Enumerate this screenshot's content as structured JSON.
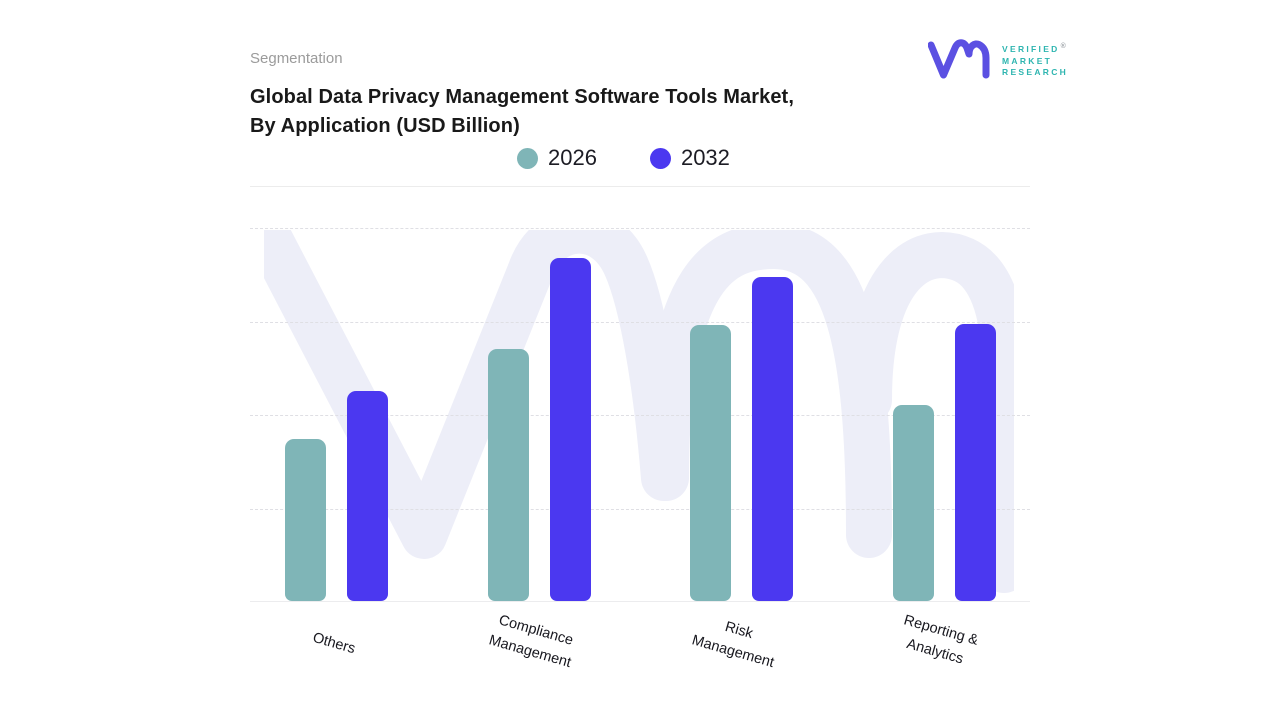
{
  "header": {
    "eyebrow": "Segmentation",
    "title_line1": "Global Data Privacy Management Software Tools Market,",
    "title_line2": "By Application (USD Billion)"
  },
  "logo": {
    "brand_lines": [
      "VERIFIED",
      "MARKET",
      "RESEARCH"
    ],
    "registered_mark": "®",
    "mark_color": "#5B50E2",
    "text_color": "#2EB5B0"
  },
  "legend": [
    {
      "label": "2026",
      "color": "#7FB5B7"
    },
    {
      "label": "2032",
      "color": "#4B38F0"
    }
  ],
  "watermark": {
    "name": "vmr-monogram",
    "color": "#EDEEF8"
  },
  "chart_data": {
    "type": "bar",
    "title": "Global Data Privacy Management Software Tools Market, By Application (USD Billion)",
    "categories": [
      "Others",
      "Compliance Management",
      "Risk Management",
      "Reporting & Analytics"
    ],
    "category_label_lines": [
      "Others",
      "Compliance\nManagement",
      "Risk\nManagement",
      "Reporting &\nAnalytics"
    ],
    "series": [
      {
        "name": "2026",
        "color": "#7FB5B7",
        "values": [
          1.73,
          2.7,
          2.95,
          2.1
        ]
      },
      {
        "name": "2032",
        "color": "#4B38F0",
        "values": [
          2.25,
          3.67,
          3.47,
          2.96
        ]
      }
    ],
    "xlabel": "",
    "ylabel": "",
    "ylim": [
      0,
      4.45
    ],
    "y_axis_ticks_labeled": false,
    "gridlines": "4 horizontal dashed lines, unlabeled; solid baseline",
    "legend_position": "top-center",
    "note": "No numeric axis labels shown; values estimated in gridline units (1 unit per dashed gridline)"
  }
}
